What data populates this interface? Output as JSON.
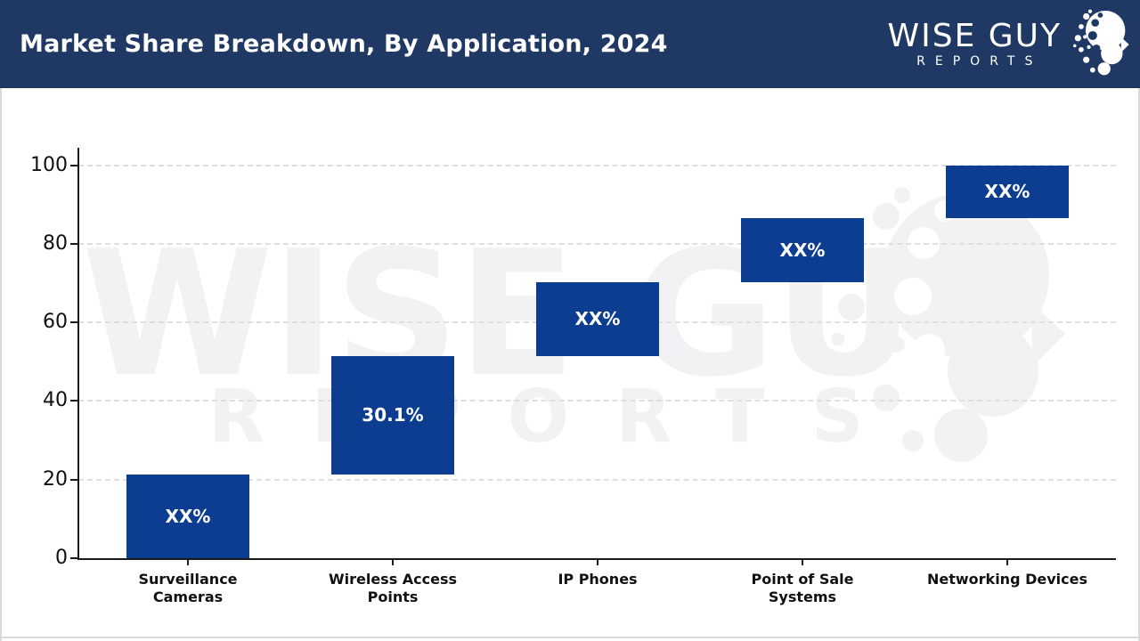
{
  "header": {
    "title": "Market Share Breakdown, By Application, 2024",
    "bg_color": "#1f3864",
    "logo": {
      "line1": "WISE GUY",
      "line2": "REPORTS"
    }
  },
  "watermark": {
    "line1": "WISE GUY",
    "line2": "REPORTS"
  },
  "chart_data": {
    "type": "bar",
    "variant": "waterfall",
    "title": "Market Share Breakdown, By Application, 2024",
    "categories": [
      "Surveillance Cameras",
      "Wireless Access Points",
      "IP Phones",
      "Point of Sale Systems",
      "Networking Devices"
    ],
    "category_lines": [
      [
        "Surveillance",
        "Cameras"
      ],
      [
        "Wireless Access",
        "Points"
      ],
      [
        "IP Phones"
      ],
      [
        "Point of Sale",
        "Systems"
      ],
      [
        "Networking Devices"
      ]
    ],
    "segments": [
      {
        "category": "Surveillance Cameras",
        "start": 0,
        "end": 21.4,
        "label": "XX%"
      },
      {
        "category": "Wireless Access Points",
        "start": 21.4,
        "end": 51.5,
        "label": "30.1%"
      },
      {
        "category": "IP Phones",
        "start": 51.5,
        "end": 70.2,
        "label": "XX%"
      },
      {
        "category": "Point of Sale Systems",
        "start": 70.2,
        "end": 86.6,
        "label": "XX%"
      },
      {
        "category": "Networking Devices",
        "start": 86.6,
        "end": 100,
        "label": "XX%"
      }
    ],
    "y_ticks": [
      0,
      20,
      40,
      60,
      80,
      100
    ],
    "ylim": [
      0,
      104.5
    ],
    "xlabel": "",
    "ylabel": "",
    "bar_color": "#0d3d91",
    "grid": "horizontal-dashed",
    "gridline_color": "#dfdfdf",
    "axis_color": "#1a1a1a",
    "legend": "none"
  }
}
